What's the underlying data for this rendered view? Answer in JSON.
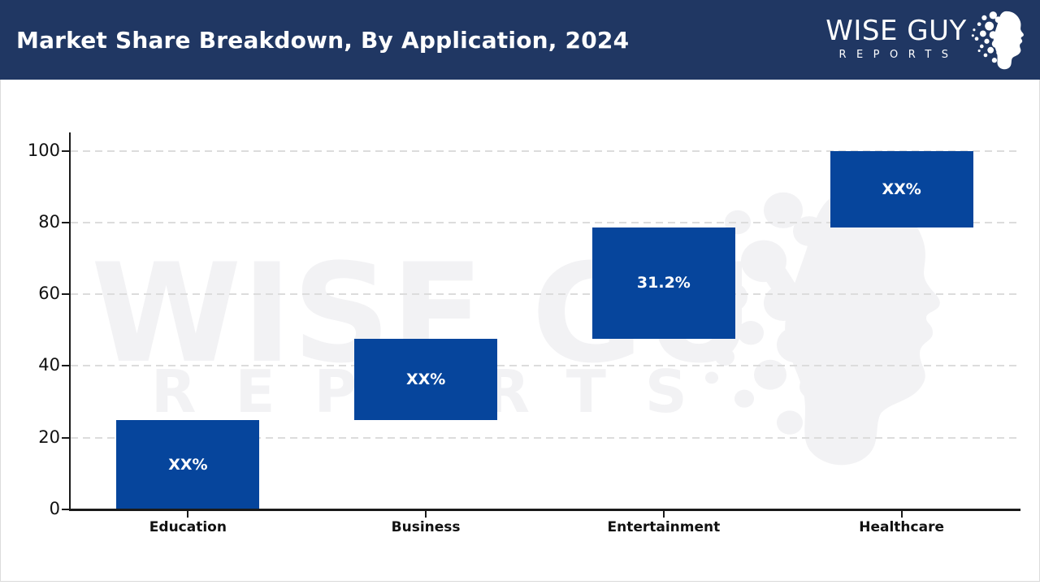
{
  "header": {
    "title": "Market Share Breakdown, By Application, 2024",
    "bg_color": "#203763",
    "logo": {
      "line1": "WISE GUY",
      "line2": "REPORTS"
    }
  },
  "watermark": {
    "line1": "WISE GUY",
    "line2": "REPORTS"
  },
  "chart_data": {
    "type": "bar",
    "subtype": "waterfall-floating-bars",
    "title": "Market Share Breakdown, By Application, 2024",
    "categories": [
      "Education",
      "Business",
      "Entertainment",
      "Healthcare"
    ],
    "segments": [
      {
        "category": "Education",
        "start": 0,
        "end": 25,
        "label": "XX%"
      },
      {
        "category": "Business",
        "start": 25,
        "end": 47.5,
        "label": "XX%"
      },
      {
        "category": "Entertainment",
        "start": 47.5,
        "end": 78.7,
        "label": "31.2%"
      },
      {
        "category": "Healthcare",
        "start": 78.7,
        "end": 100,
        "label": "XX%"
      }
    ],
    "ylim": [
      0,
      100
    ],
    "yticks": [
      0,
      20,
      40,
      60,
      80,
      100
    ],
    "xlabel": "",
    "ylabel": "",
    "legend": "none",
    "grid": "horizontal-dashed",
    "bar_color": "#06459c",
    "bar_label_color": "#ffffff"
  }
}
